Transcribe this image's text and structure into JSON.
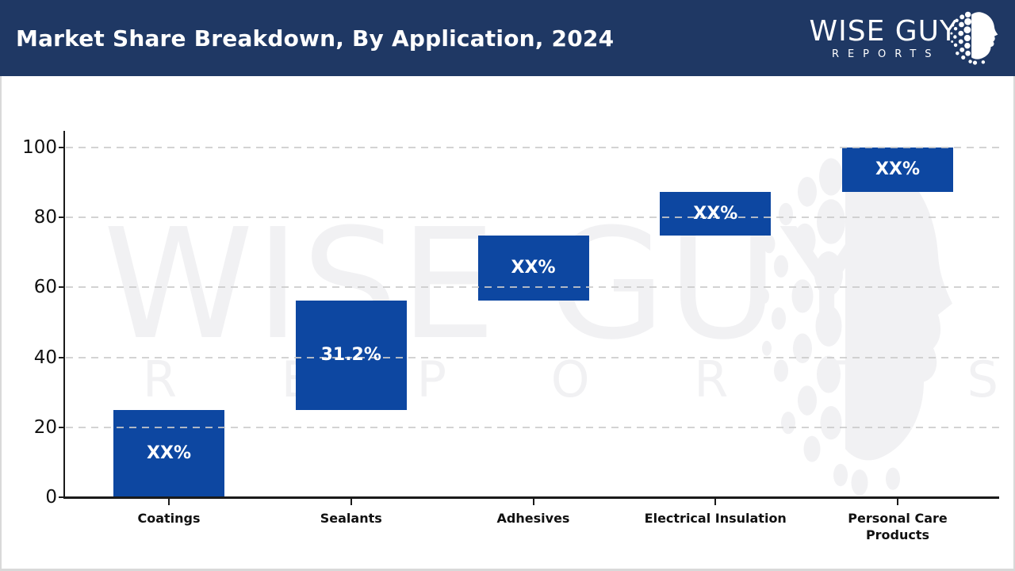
{
  "header": {
    "title": "Market Share Breakdown, By Application, 2024",
    "bg_color": "#1F3864",
    "logo": {
      "line1": "WISE GUY",
      "line2": "REPORTS"
    }
  },
  "watermark": {
    "line1": "WISE GUY",
    "line2": "R E P O R T S"
  },
  "chart_data": {
    "type": "bar",
    "subtype": "waterfall",
    "title": "Market Share Breakdown, By Application, 2024",
    "categories": [
      "Coatings",
      "Sealants",
      "Adhesives",
      "Electrical Insulation",
      "Personal Care Products"
    ],
    "segments": [
      {
        "label": "XX%",
        "start": 0,
        "end": 25
      },
      {
        "label": "31.2%",
        "start": 25,
        "end": 56.2
      },
      {
        "label": "XX%",
        "start": 56.2,
        "end": 74.8
      },
      {
        "label": "XX%",
        "start": 74.8,
        "end": 87.3
      },
      {
        "label": "XX%",
        "start": 87.3,
        "end": 100
      }
    ],
    "y_ticks": [
      0,
      20,
      40,
      60,
      80,
      100
    ],
    "ylim": [
      0,
      105
    ],
    "grid": true,
    "legend": false,
    "bar_color": "#0D47A1",
    "grid_color": "#d9d9d9",
    "axis_color": "#1a1a1a",
    "label_color": "#ffffff"
  }
}
